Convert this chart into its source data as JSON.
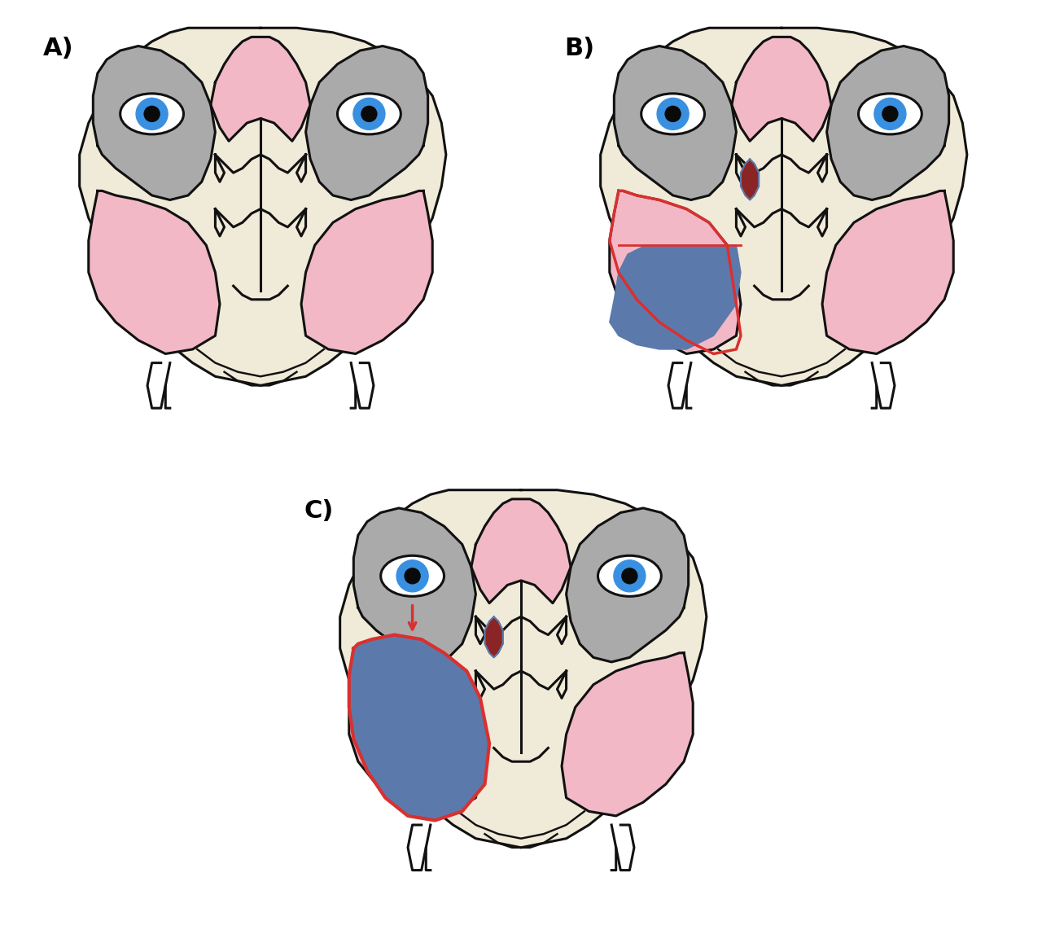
{
  "bg_color": "#ffffff",
  "skin_color": "#f0ead8",
  "orbit_color": "#aaaaaa",
  "sinus_pink": "#f2b8c6",
  "sinus_blue": "#5b7aab",
  "sinus_red_outline": "#d93030",
  "dark_red": "#8b2525",
  "eye_blue": "#3a90e0",
  "eye_white": "#ffffff",
  "pupil": "#0a0a0a",
  "outline": "#111111",
  "label_A": "A)",
  "label_B": "B)",
  "label_C": "C)",
  "arrow_red": "#d93030",
  "lw": 2.2
}
